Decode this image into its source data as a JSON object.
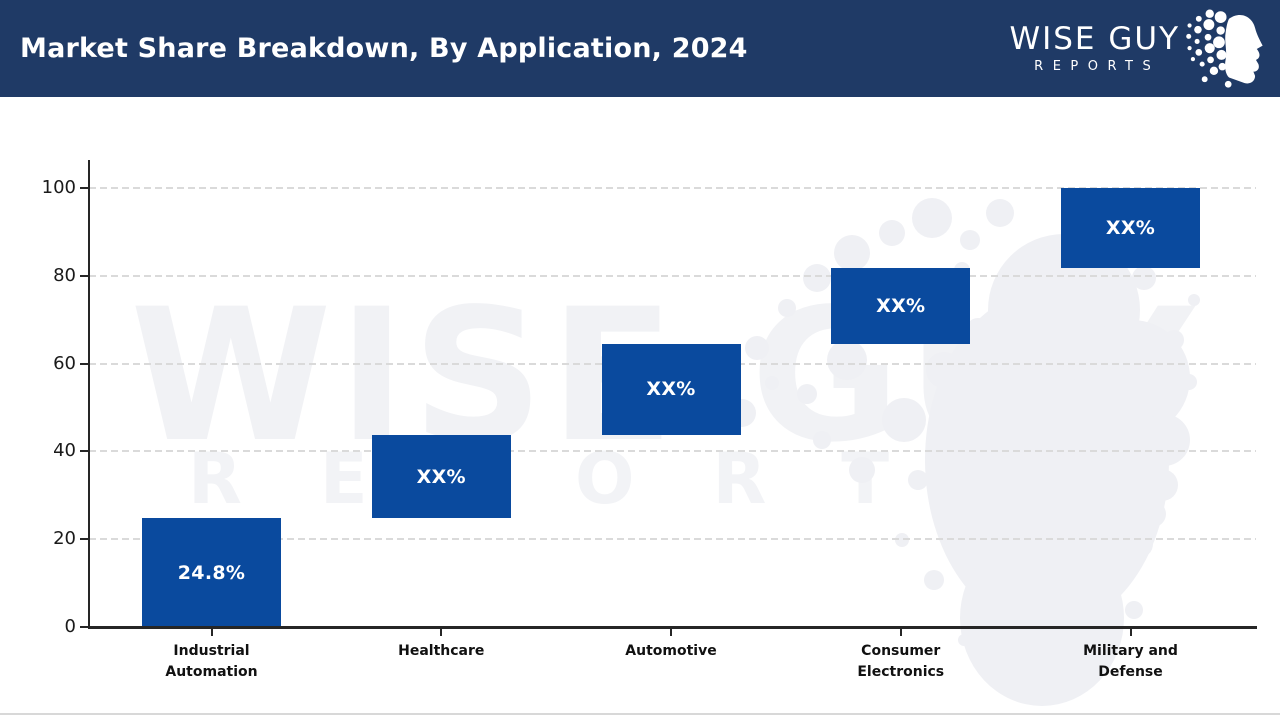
{
  "header": {
    "title": "Market Share Breakdown, By Application, 2024",
    "logo": {
      "name": "WISE GUY",
      "sub": "REPORTS"
    }
  },
  "watermark": {
    "line1": "WISE GUY",
    "line2": "REPORTS"
  },
  "chart_data": {
    "type": "bar",
    "subtype": "waterfall",
    "title": "Market Share Breakdown, By Application, 2024",
    "categories": [
      "Industrial Automation",
      "Healthcare",
      "Automotive",
      "Consumer Electronics",
      "Military and Defense"
    ],
    "category_lines": [
      [
        "Industrial",
        "Automation"
      ],
      [
        "Healthcare"
      ],
      [
        "Automotive"
      ],
      [
        "Consumer",
        "Electronics"
      ],
      [
        "Military and",
        "Defense"
      ]
    ],
    "segments": [
      {
        "category": "Industrial Automation",
        "start": 0,
        "end": 24.8,
        "label": "24.8%"
      },
      {
        "category": "Healthcare",
        "start": 24.8,
        "end": 43.7,
        "label": "XX%"
      },
      {
        "category": "Automotive",
        "start": 43.7,
        "end": 64.5,
        "label": "XX%"
      },
      {
        "category": "Consumer Electronics",
        "start": 64.5,
        "end": 81.8,
        "label": "XX%"
      },
      {
        "category": "Military and Defense",
        "start": 81.8,
        "end": 100,
        "label": "XX%"
      }
    ],
    "xlabel": "",
    "ylabel": "",
    "ylim": [
      0,
      100
    ],
    "yticks": [
      0,
      20,
      40,
      60,
      80,
      100
    ],
    "grid": "horizontal-dashed",
    "legend": "none",
    "bar_color": "#0a4a9e",
    "value_label_color": "#ffffff"
  },
  "colors": {
    "header_bg": "#1f3a66",
    "bar": "#0a4a9e",
    "grid": "#dadada",
    "axis": "#262626",
    "watermark": "#f1f2f5"
  }
}
